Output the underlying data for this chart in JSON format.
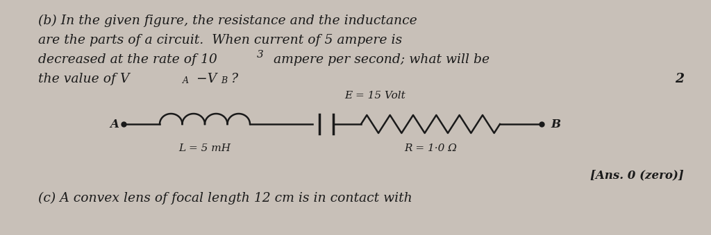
{
  "bg_color": "#c8c0b8",
  "text_color": "#1a1a1a",
  "title_line1": "(b) In the given figure, the resistance and the inductance",
  "title_line2": "are the parts of a circuit.  When current of 5 ampere is",
  "title_line3": "decreased at the rate of 10",
  "title_line3b": "3",
  "title_line3c": " ampere per second; what will be",
  "title_line4": "the value of V",
  "title_line4_A": "A",
  "title_line4_mid": "−V",
  "title_line4_B": "B",
  "title_line4_end": "?",
  "marks": "2",
  "circuit_label_E": "E = 15 Volt",
  "circuit_label_L": "L = 5 mH",
  "circuit_label_R": "R = 1·0 Ω",
  "label_A": "A",
  "label_B": "B",
  "ans_text": "[Ans. 0 (zero)]",
  "bottom_text": "(c) A convex lens of focal length 12 cm is in contact with",
  "font_size_main": 13.5,
  "font_size_small": 11,
  "font_size_ans": 12
}
